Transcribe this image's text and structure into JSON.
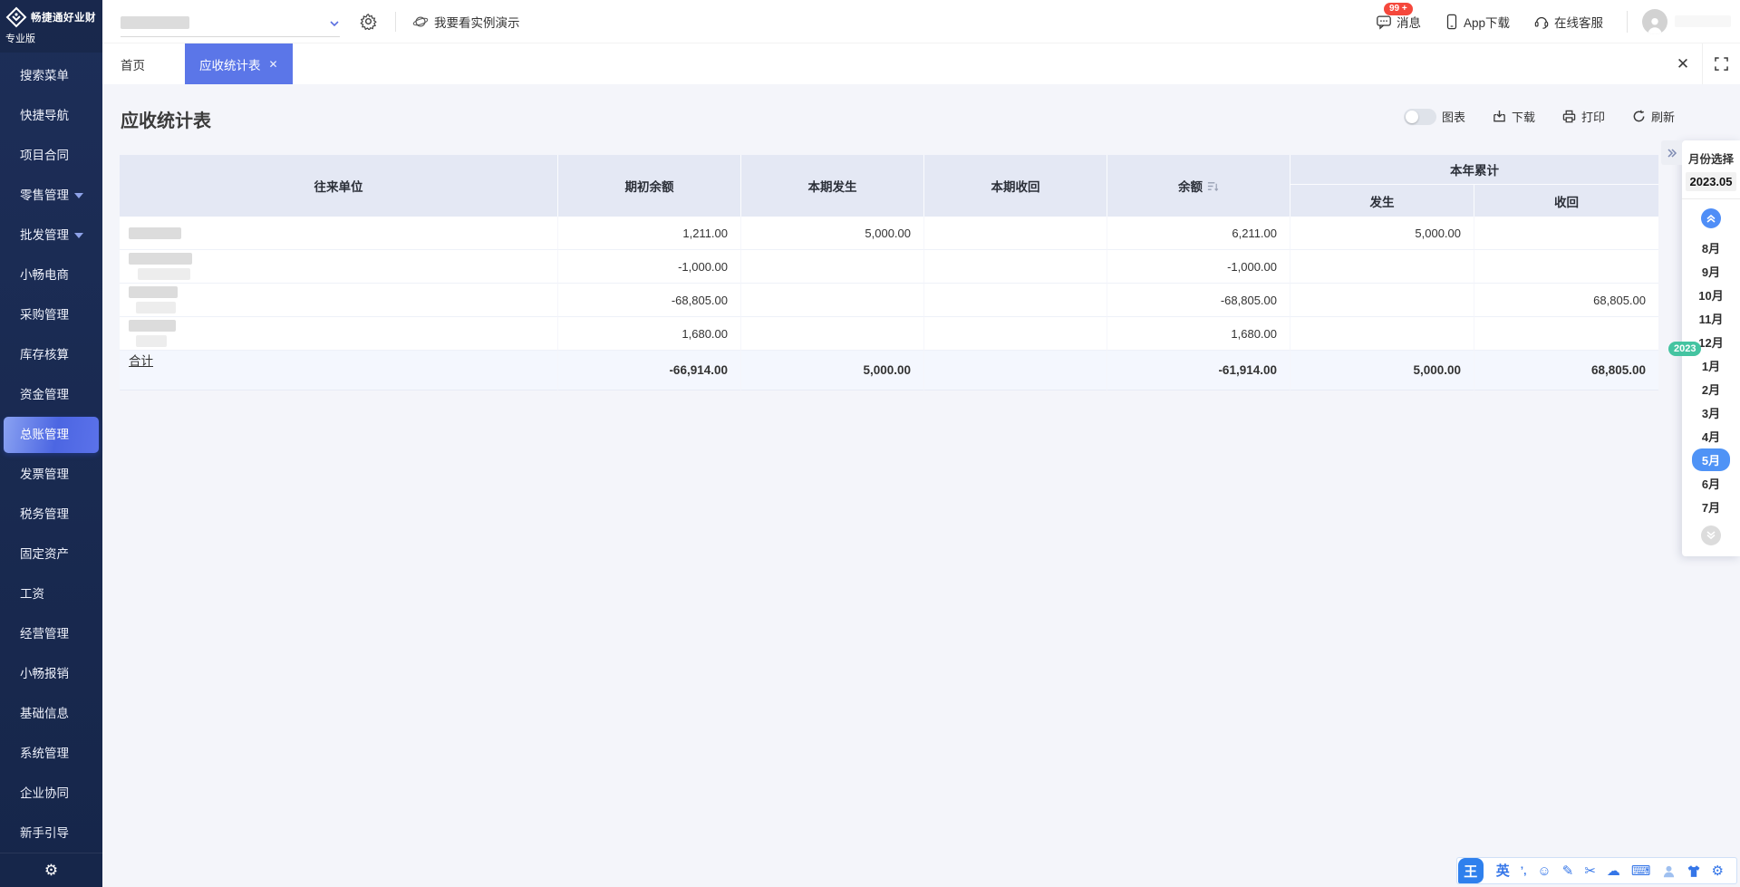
{
  "brand": {
    "name": "畅捷通好业财",
    "edition": "专业版"
  },
  "sidebar": {
    "items": [
      {
        "label": "搜索菜单",
        "has_submenu": false,
        "active": false
      },
      {
        "label": "快捷导航",
        "has_submenu": false,
        "active": false
      },
      {
        "label": "项目合同",
        "has_submenu": false,
        "active": false
      },
      {
        "label": "零售管理",
        "has_submenu": true,
        "active": false
      },
      {
        "label": "批发管理",
        "has_submenu": true,
        "active": false
      },
      {
        "label": "小畅电商",
        "has_submenu": false,
        "active": false
      },
      {
        "label": "采购管理",
        "has_submenu": false,
        "active": false
      },
      {
        "label": "库存核算",
        "has_submenu": false,
        "active": false
      },
      {
        "label": "资金管理",
        "has_submenu": false,
        "active": false
      },
      {
        "label": "总账管理",
        "has_submenu": false,
        "active": true
      },
      {
        "label": "发票管理",
        "has_submenu": false,
        "active": false
      },
      {
        "label": "税务管理",
        "has_submenu": false,
        "active": false
      },
      {
        "label": "固定资产",
        "has_submenu": false,
        "active": false
      },
      {
        "label": "工资",
        "has_submenu": false,
        "active": false
      },
      {
        "label": "经营管理",
        "has_submenu": false,
        "active": false
      },
      {
        "label": "小畅报销",
        "has_submenu": false,
        "active": false
      },
      {
        "label": "基础信息",
        "has_submenu": false,
        "active": false
      },
      {
        "label": "系统管理",
        "has_submenu": false,
        "active": false
      },
      {
        "label": "企业协同",
        "has_submenu": false,
        "active": false
      },
      {
        "label": "新手引导",
        "has_submenu": false,
        "active": false
      }
    ]
  },
  "topbar": {
    "demo_label": "我要看实例演示",
    "messages_label": "消息",
    "messages_badge": "99 +",
    "app_label": "App下载",
    "support_label": "在线客服"
  },
  "tabs": {
    "home": "首页",
    "active_tab": "应收统计表"
  },
  "page": {
    "title": "应收统计表"
  },
  "toolbar": {
    "chart_label": "图表",
    "chart_toggle_on": false,
    "download_label": "下载",
    "print_label": "打印",
    "refresh_label": "刷新"
  },
  "table": {
    "headers": {
      "unit": "往来单位",
      "opening_balance": "期初余额",
      "period_incurred": "本期发生",
      "period_received": "本期收回",
      "balance": "余额",
      "ytd_group": "本年累计",
      "ytd_incurred": "发生",
      "ytd_received": "收回"
    },
    "rows": [
      {
        "opening": "1,211.00",
        "incurred": "5,000.00",
        "received": "",
        "balance": "6,211.00",
        "ytd_incurred": "5,000.00",
        "ytd_received": ""
      },
      {
        "opening": "-1,000.00",
        "incurred": "",
        "received": "",
        "balance": "-1,000.00",
        "ytd_incurred": "",
        "ytd_received": ""
      },
      {
        "opening": "-68,805.00",
        "incurred": "",
        "received": "",
        "balance": "-68,805.00",
        "ytd_incurred": "",
        "ytd_received": "68,805.00"
      },
      {
        "opening": "1,680.00",
        "incurred": "",
        "received": "",
        "balance": "1,680.00",
        "ytd_incurred": "",
        "ytd_received": ""
      }
    ],
    "total": {
      "label": "合计",
      "opening": "-66,914.00",
      "incurred": "5,000.00",
      "received": "",
      "balance": "-61,914.00",
      "ytd_incurred": "5,000.00",
      "ytd_received": "68,805.00"
    }
  },
  "month_panel": {
    "title": "月份选择",
    "current": "2023.05",
    "year_badge": "2023",
    "months": [
      "8月",
      "9月",
      "10月",
      "11月",
      "12月",
      "1月",
      "2月",
      "3月",
      "4月",
      "5月",
      "6月",
      "7月"
    ],
    "selected_month": "5月"
  },
  "ime": {
    "logo_char": "王",
    "lang_char": "英",
    "punct_glyph": "’,",
    "smiley_glyph": "☺",
    "pencil_glyph": "✎",
    "scissors_glyph": "✂",
    "cloud_glyph": "☁",
    "keyboard_glyph": "⌨",
    "gear_glyph": "⚙"
  },
  "colors": {
    "accent": "#5b76e8",
    "sidebar_bg": "#17264a",
    "active_month_bg": "#4f93f6",
    "year_badge_green": "#44c4a1",
    "message_badge_red": "#f5483c",
    "table_header_bg": "#e4e8f4",
    "total_row_bg": "#f4f7fe"
  }
}
